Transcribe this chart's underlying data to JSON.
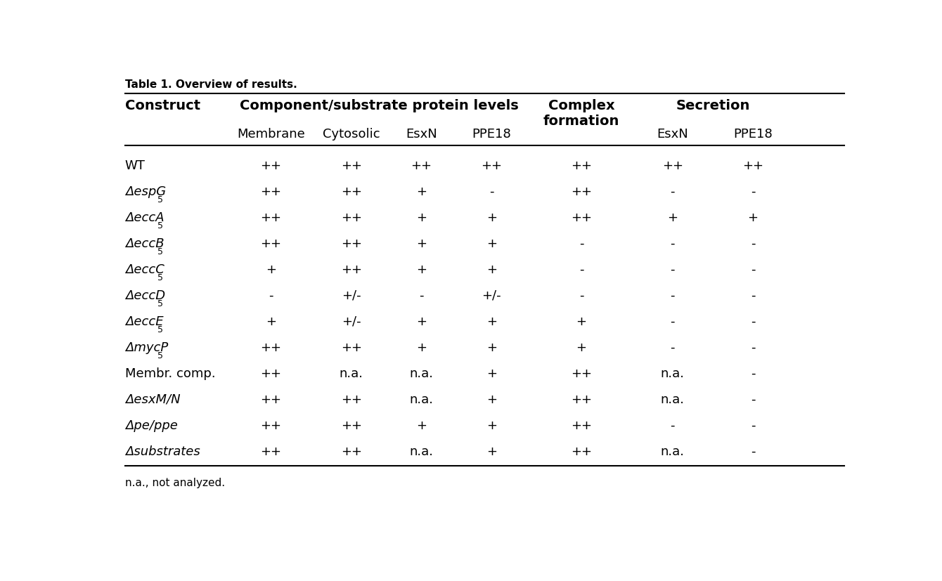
{
  "title": "Table 1. Overview of results.",
  "footnote": "n.a., not analyzed.",
  "rows": [
    {
      "construct": "WT",
      "italic": false,
      "subscript": null,
      "values": [
        "++",
        "++",
        "++",
        "++",
        "++",
        "++",
        "++"
      ]
    },
    {
      "construct": "ΔespG",
      "italic": true,
      "subscript": "5",
      "values": [
        "++",
        "++",
        "+",
        "-",
        "++",
        "-",
        "-"
      ]
    },
    {
      "construct": "ΔeccA",
      "italic": true,
      "subscript": "5",
      "values": [
        "++",
        "++",
        "+",
        "+",
        "++",
        "+",
        "+"
      ]
    },
    {
      "construct": "ΔeccB",
      "italic": true,
      "subscript": "5",
      "values": [
        "++",
        "++",
        "+",
        "+",
        "-",
        "-",
        "-"
      ]
    },
    {
      "construct": "ΔeccC",
      "italic": true,
      "subscript": "5",
      "values": [
        "+",
        "++",
        "+",
        "+",
        "-",
        "-",
        "-"
      ]
    },
    {
      "construct": "ΔeccD",
      "italic": true,
      "subscript": "5",
      "values": [
        "-",
        "+/-",
        "-",
        "+/-",
        "-",
        "-",
        "-"
      ]
    },
    {
      "construct": "ΔeccE",
      "italic": true,
      "subscript": "5",
      "values": [
        "+",
        "+/-",
        "+",
        "+",
        "+",
        "-",
        "-"
      ]
    },
    {
      "construct": "ΔmycP",
      "italic": true,
      "subscript": "5",
      "values": [
        "++",
        "++",
        "+",
        "+",
        "+",
        "-",
        "-"
      ]
    },
    {
      "construct": "Membr. comp.",
      "italic": false,
      "subscript": null,
      "values": [
        "++",
        "n.a.",
        "n.a.",
        "+",
        "++",
        "n.a.",
        "-"
      ]
    },
    {
      "construct": "ΔesxM/N",
      "italic": true,
      "subscript": null,
      "values": [
        "++",
        "++",
        "n.a.",
        "+",
        "++",
        "n.a.",
        "-"
      ]
    },
    {
      "construct": "Δpe/ppe",
      "italic": true,
      "subscript": null,
      "values": [
        "++",
        "++",
        "+",
        "+",
        "++",
        "-",
        "-"
      ]
    },
    {
      "construct": "Δsubstrates",
      "italic": true,
      "subscript": null,
      "values": [
        "++",
        "++",
        "n.a.",
        "+",
        "++",
        "n.a.",
        "-"
      ]
    }
  ],
  "bg_color": "#ffffff",
  "text_color": "#000000",
  "header_fontsize": 14,
  "sub_header_fontsize": 13,
  "row_fontsize": 13,
  "title_fontsize": 11,
  "footnote_fontsize": 11
}
